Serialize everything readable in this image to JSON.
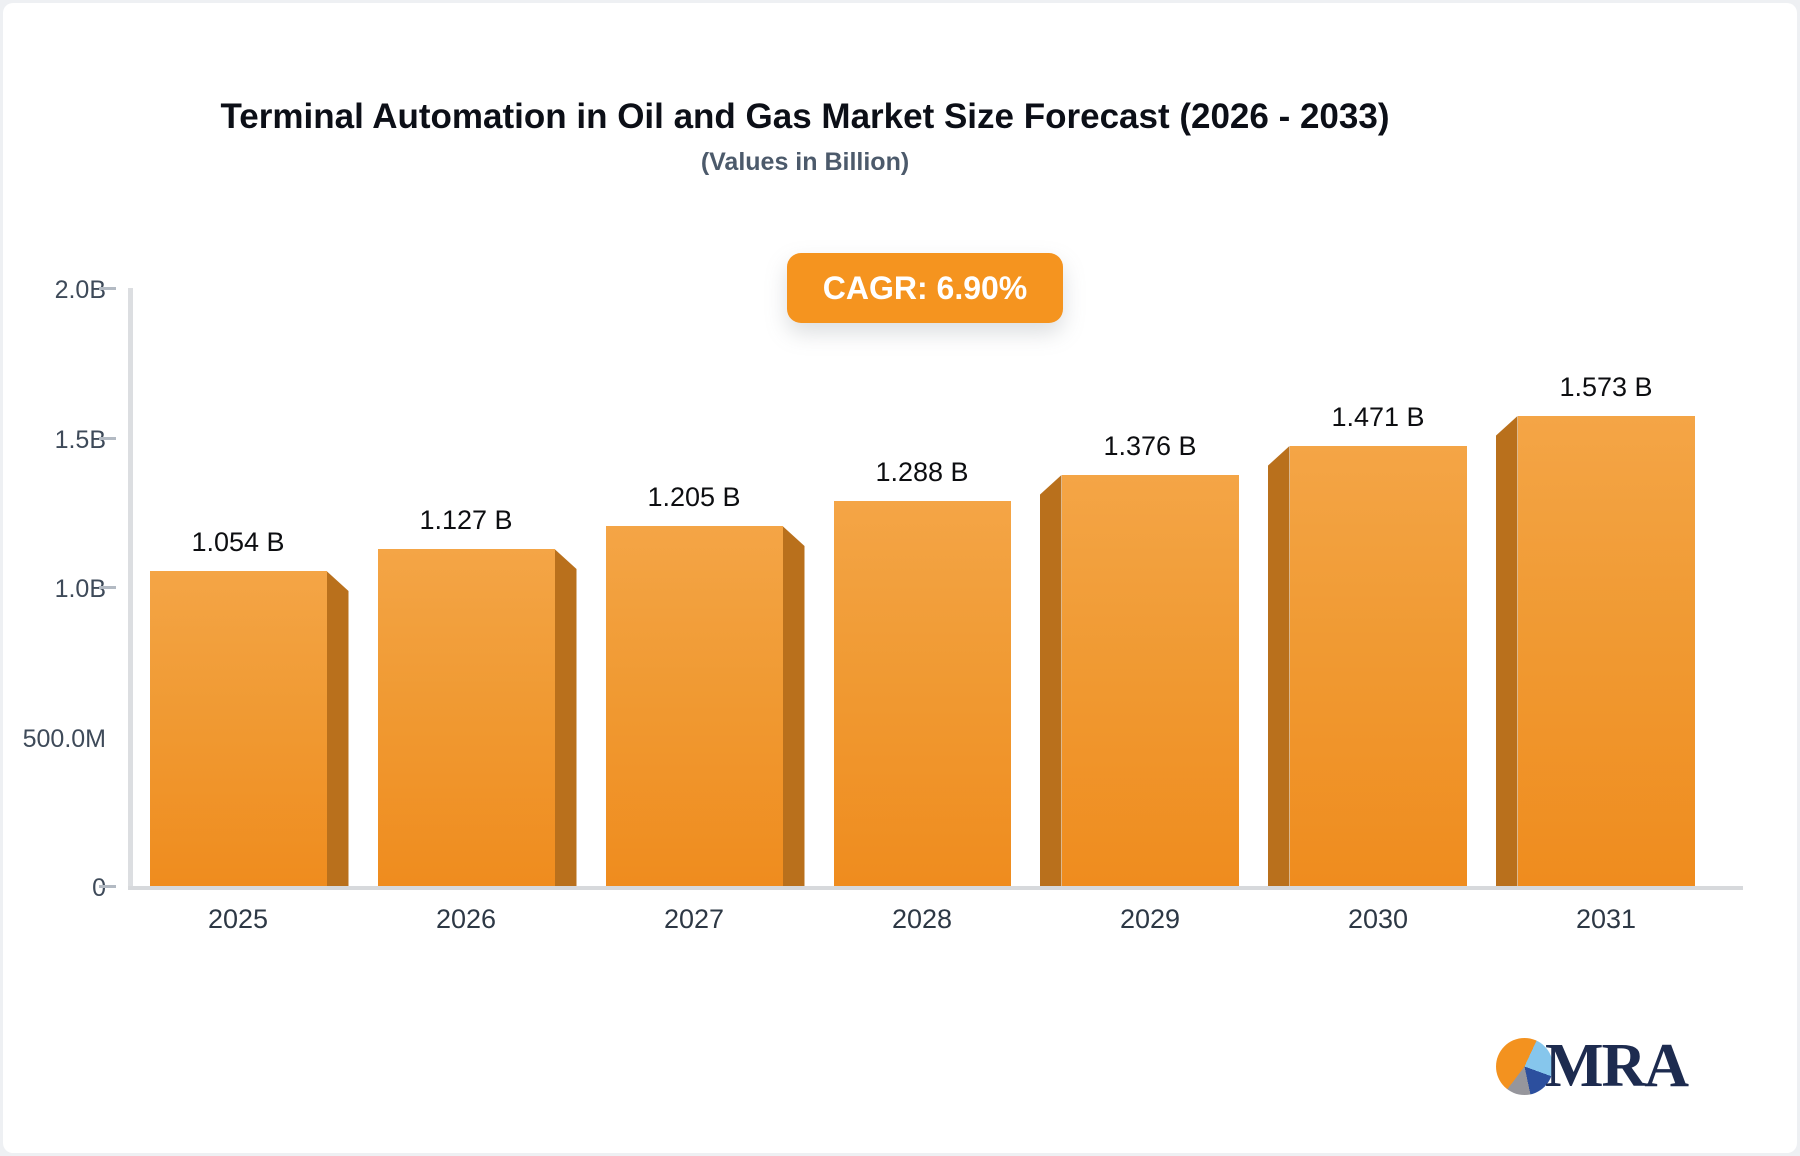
{
  "header": {
    "title": "Terminal Automation in Oil and Gas Market Size Forecast (2026 - 2033)",
    "subtitle": "(Values in Billion)"
  },
  "badge": {
    "label": "CAGR: 6.90%",
    "bg_color": "#F5941F",
    "text_color": "#FFFFFF"
  },
  "chart_data": {
    "type": "bar",
    "title": "Terminal Automation in Oil and Gas Market Size Forecast (2026 - 2033)",
    "subtitle": "(Values in Billion)",
    "categories": [
      "2025",
      "2026",
      "2027",
      "2028",
      "2029",
      "2030",
      "2031"
    ],
    "values": [
      1.054,
      1.127,
      1.205,
      1.288,
      1.376,
      1.471,
      1.573
    ],
    "value_labels": [
      "1.054 B",
      "1.127 B",
      "1.205 B",
      "1.288 B",
      "1.376 B",
      "1.471 B",
      "1.573 B"
    ],
    "cagr_annotation": "CAGR: 6.90%",
    "ylim": [
      0,
      2.0
    ],
    "y_ticks": [
      {
        "label": "2.0B",
        "value": 2.0,
        "has_dash": true
      },
      {
        "label": "1.5B",
        "value": 1.5,
        "has_dash": true
      },
      {
        "label": "1.0B",
        "value": 1.0,
        "has_dash": true
      },
      {
        "label": "500.0M",
        "value": 0.5,
        "has_dash": false
      },
      {
        "label": "0",
        "value": 0.0,
        "has_dash": true
      }
    ],
    "grid": false,
    "legend": false,
    "colors": {
      "bar_top": "#F4A546",
      "bar_bottom": "#EF8C1E",
      "bar_3d_side": "#B9701C",
      "axis_line": "#DCDEE1",
      "tick_text": "#3E4A59",
      "value_text": "#0D0E11"
    }
  },
  "logo": {
    "text": "MRA",
    "icon": "pie-chart-icon",
    "colors": {
      "orange": "#F3921F",
      "light_blue": "#86C6EC",
      "dark_blue": "#2C4F9E",
      "gray": "#96969C",
      "text_navy": "#1D2B4F"
    }
  }
}
